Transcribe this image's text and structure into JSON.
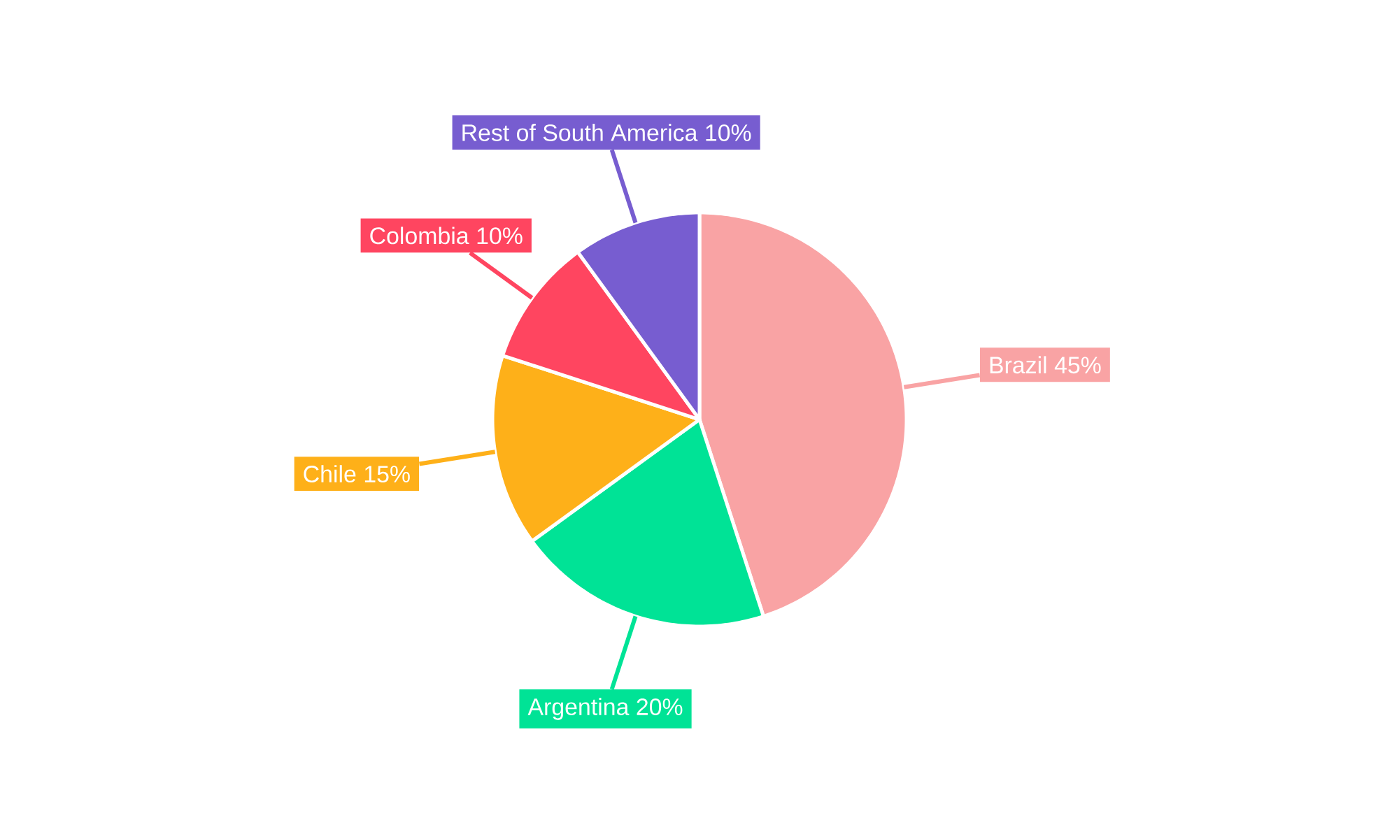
{
  "chart_data": {
    "type": "pie",
    "categories": [
      "Brazil",
      "Argentina",
      "Chile",
      "Colombia",
      "Rest of South America"
    ],
    "values": [
      45,
      20,
      15,
      10,
      10
    ],
    "value_labels": [
      "45%",
      "20%",
      "15%",
      "10%",
      "10%"
    ],
    "colors": [
      "#f9a3a4",
      "#00e396",
      "#feb019",
      "#ff4560",
      "#775dd0"
    ]
  }
}
